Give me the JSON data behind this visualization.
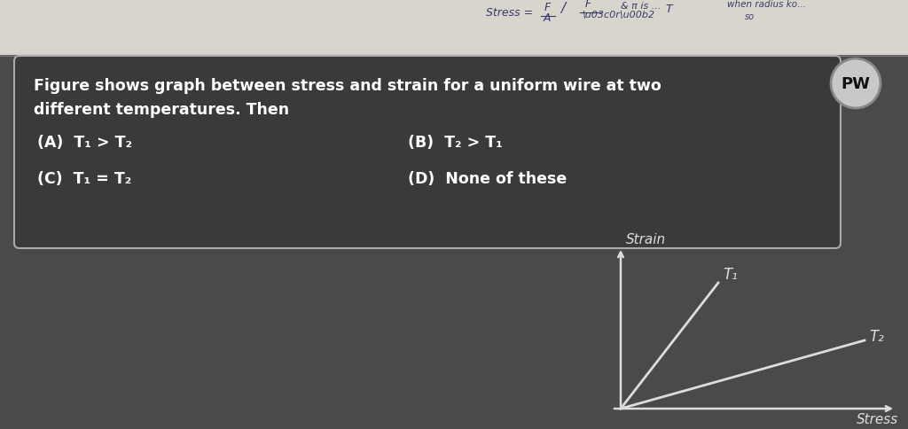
{
  "bg_color": "#4a4a4a",
  "top_paper_color": "#d8d5cc",
  "box_bg_color": "#3a3a3a",
  "box_edge_color": "#aaaaaa",
  "box_text_color": "#ffffff",
  "title_line1": "Figure shows graph between stress and strain for a uniform wire at two",
  "title_line2": "different temperatures. Then",
  "opt_A": "(A)  T₁ > T₂",
  "opt_B": "(B)  T₂ > T₁",
  "opt_C": "(C)  T₁ = T₂",
  "opt_D": "(D)  None of these",
  "graph_axis_color": "#dddddd",
  "graph_line_color": "#dddddd",
  "graph_label_strain": "Strain",
  "graph_label_stress": "Stress",
  "graph_T1_label": "T₁",
  "graph_T2_label": "T₂",
  "logo_text": "PW",
  "logo_bg": "#c8c8c8",
  "logo_border": "#888888"
}
